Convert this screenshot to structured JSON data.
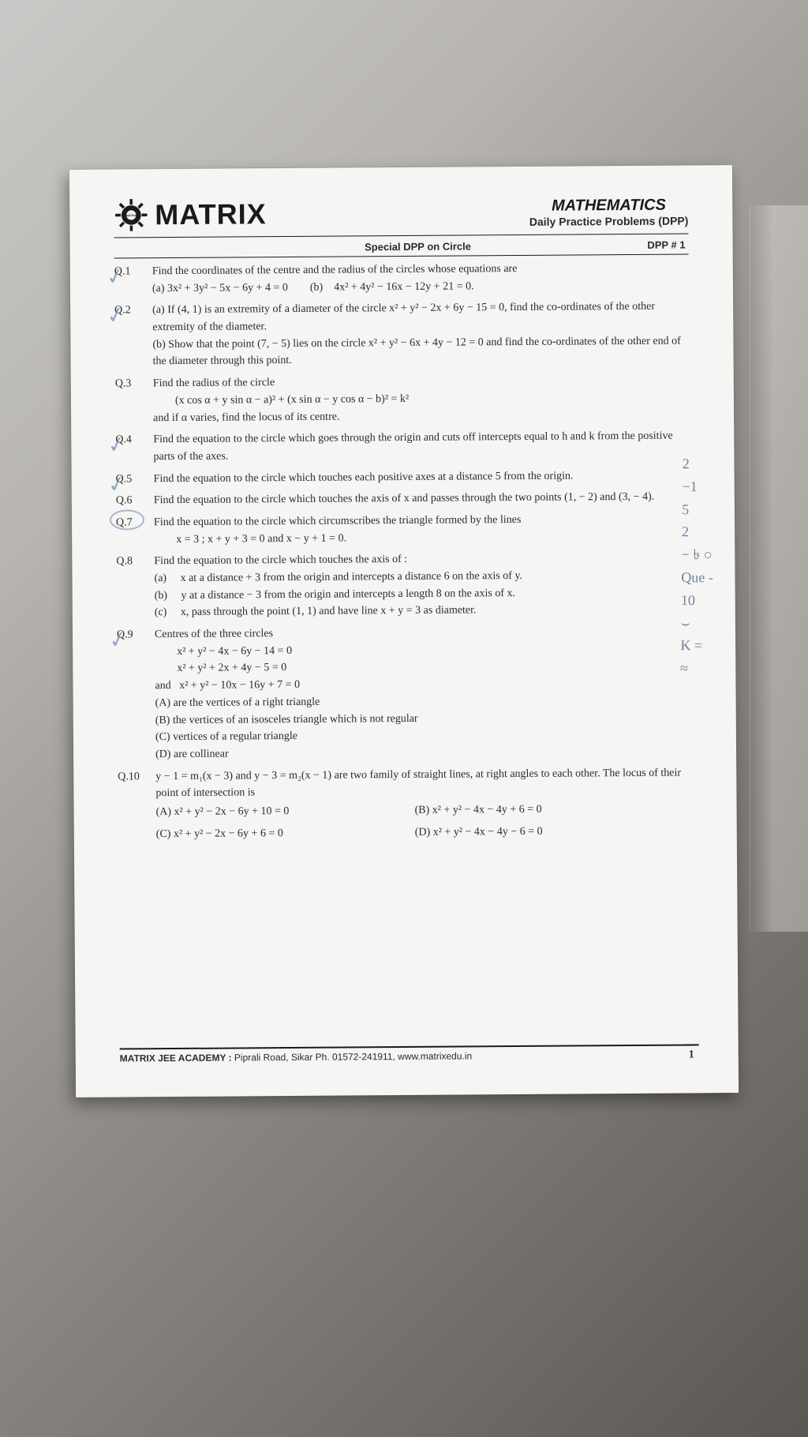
{
  "header": {
    "brand": "MATRIX",
    "subject": "MATHEMATICS",
    "series": "Daily Practice Problems (DPP)",
    "subtitle": "Special DPP on Circle",
    "sheet_id": "DPP # 1",
    "gear_color": "#1a1a1a"
  },
  "colors": {
    "paper_bg": "#f5f5f3",
    "text": "#2b2b2b",
    "ink_blue": "#4a6aa8",
    "rule": "#1a1a1a"
  },
  "questions": [
    {
      "num": "Q.1",
      "text": "Find the coordinates of the centre and the radius of the circles whose equations are",
      "subs": [
        "(a) 3x² + 3y² − 5x − 6y + 4 = 0        (b)    4x² + 4y² − 16x − 12y + 21 = 0."
      ],
      "mark": "check"
    },
    {
      "num": "Q.2",
      "text": "(a) If (4, 1) is an extremity of a diameter of the circle x² + y² − 2x + 6y − 15 = 0, find the co-ordinates of the other extremity of the diameter.",
      "subs": [
        "(b) Show that the point (7, − 5) lies on the circle x² + y² − 6x + 4y − 12 = 0 and find the co-ordinates of the other end of the diameter through this point."
      ],
      "mark": "check"
    },
    {
      "num": "Q.3",
      "text": "Find the radius of the circle",
      "subs": [
        "        (x cos α + y sin α − a)² + (x sin α − y cos α − b)² = k²",
        "and if α varies, find the locus of its centre."
      ]
    },
    {
      "num": "Q.4",
      "text": "Find the equation to the circle which goes through the origin and cuts off intercepts equal to h and k from the positive parts of the axes.",
      "mark": "check"
    },
    {
      "num": "Q.5",
      "text": "Find the equation to the circle which touches each positive axes at a distance 5 from the origin.",
      "mark": "check"
    },
    {
      "num": "Q.6",
      "text": "Find the equation to the circle which touches the axis of x and passes through the two points (1, − 2) and (3, − 4)."
    },
    {
      "num": "Q.7",
      "text": "Find the equation to the circle which circumscribes the triangle formed by the lines",
      "subs": [
        "        x = 3 ; x + y + 3 = 0 and x − y + 1 = 0."
      ],
      "mark": "circle"
    },
    {
      "num": "Q.8",
      "text": "Find the equation to the circle which touches the axis of :",
      "subs": [
        "(a)     x at a distance + 3 from the origin and intercepts a distance 6 on the axis of y.",
        "(b)     y at a distance − 3 from the origin and intercepts a length 8 on the axis of x.",
        "(c)     x, pass through the point (1, 1) and have line x + y = 3 as diameter."
      ]
    },
    {
      "num": "Q.9",
      "text": "Centres of the three circles",
      "subs": [
        "        x² + y² − 4x − 6y − 14 = 0",
        "        x² + y² + 2x + 4y − 5 = 0",
        "and   x² + y² − 10x − 16y + 7 = 0"
      ],
      "options": [
        "(A) are the vertices of a right triangle",
        "(B) the vertices of an isosceles triangle which is not regular",
        "(C) vertices of a regular triangle",
        "(D) are collinear"
      ],
      "mark": "check"
    },
    {
      "num": "Q.10",
      "text": "y − 1 = m₁(x − 3) and y − 3 = m₂(x − 1) are two family of straight lines, at right angles to each other. The locus of their point of intersection is",
      "options2": [
        "(A) x² + y² − 2x − 6y + 10 = 0",
        "(B) x² + y² − 4x − 4y + 6 = 0",
        "(C) x² + y² − 2x − 6y + 6 = 0",
        "(D) x² + y² − 4x − 4y − 6 = 0"
      ]
    }
  ],
  "footer": {
    "academy": "MATRIX JEE ACADEMY :",
    "address": "Piprali Road, Sikar Ph. 01572-241911, www.matrixedu.in",
    "page": "1"
  },
  "handwriting": {
    "right_notes": [
      "2",
      "−1",
      "5",
      "2",
      "− ৳ ○",
      "Que - 10",
      "⌣",
      "K =",
      "≈"
    ]
  }
}
